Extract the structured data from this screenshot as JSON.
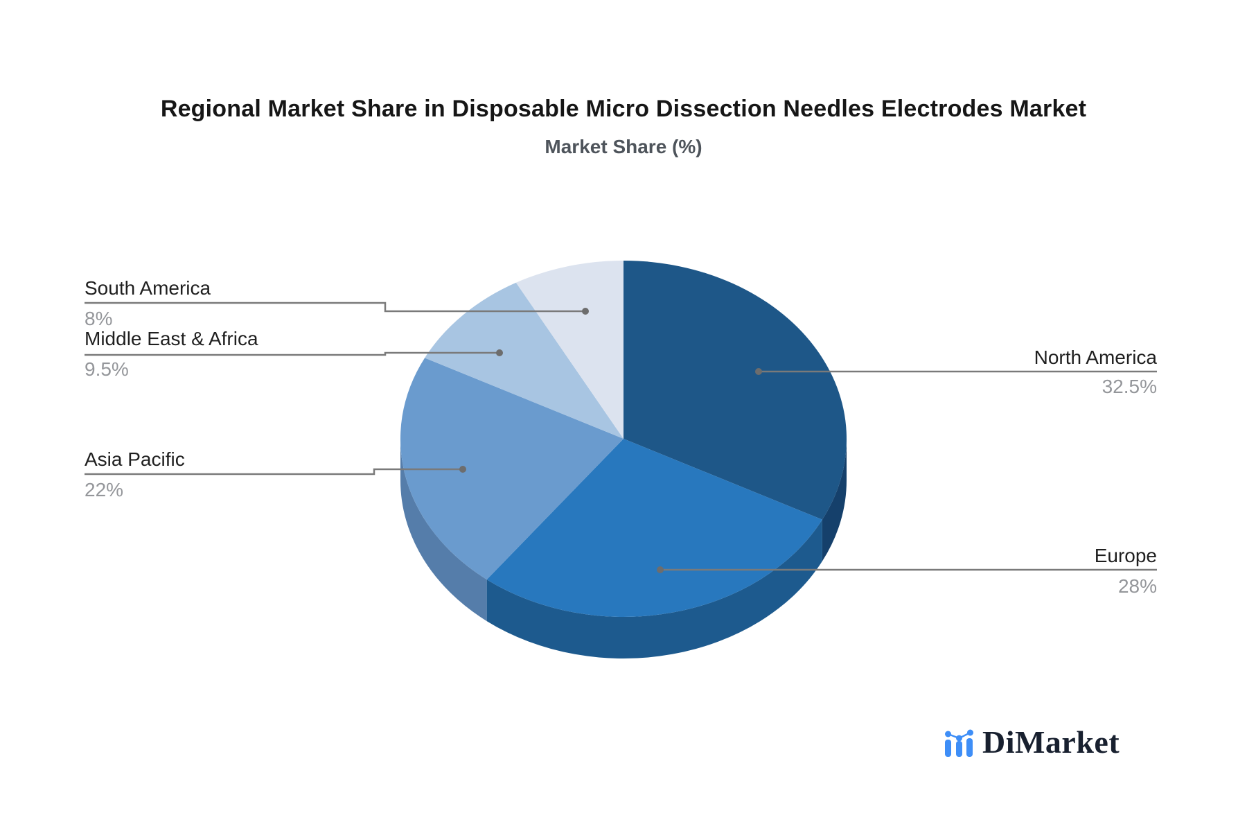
{
  "header": {
    "title": "Regional Market Share in Disposable Micro Dissection Needles Electrodes Market",
    "subtitle": "Market Share (%)"
  },
  "chart_data": {
    "type": "pie",
    "title": "Regional Market Share in Disposable Micro Dissection Needles Electrodes Market",
    "subtitle": "Market Share (%)",
    "unit": "%",
    "three_d": true,
    "start_angle_deg": 0,
    "direction": "clockwise",
    "slices": [
      {
        "name": "North America",
        "value": 32.5,
        "pct_label": "32.5%",
        "color": "#1E5788",
        "side_color": "#15406B",
        "label_side": "right"
      },
      {
        "name": "Europe",
        "value": 28,
        "pct_label": "28%",
        "color": "#2878BE",
        "side_color": "#1D5A8E",
        "label_side": "right"
      },
      {
        "name": "Asia Pacific",
        "value": 22,
        "pct_label": "22%",
        "color": "#6A9BCE",
        "side_color": "#557DAA",
        "label_side": "left"
      },
      {
        "name": "Middle East & Africa",
        "value": 9.5,
        "pct_label": "9.5%",
        "color": "#A8C5E2",
        "side_color": "#8FA9C4",
        "label_side": "left"
      },
      {
        "name": "South America",
        "value": 8,
        "pct_label": "8%",
        "color": "#DCE3EF",
        "side_color": "#B9C3D4",
        "label_side": "left"
      }
    ]
  },
  "logo": {
    "text": "DiMarket",
    "icon": "bar-line-chart-icon",
    "icon_color": "#3E8EF7",
    "text_color": "#18202f"
  },
  "colors": {
    "background": "#ffffff",
    "leader_line": "#7a7a7a",
    "leader_dot": "#6d6d6d",
    "title_text": "#161616",
    "subtitle_text": "#4e545b",
    "label_text": "#1f1f1f",
    "value_text": "#94969a"
  }
}
